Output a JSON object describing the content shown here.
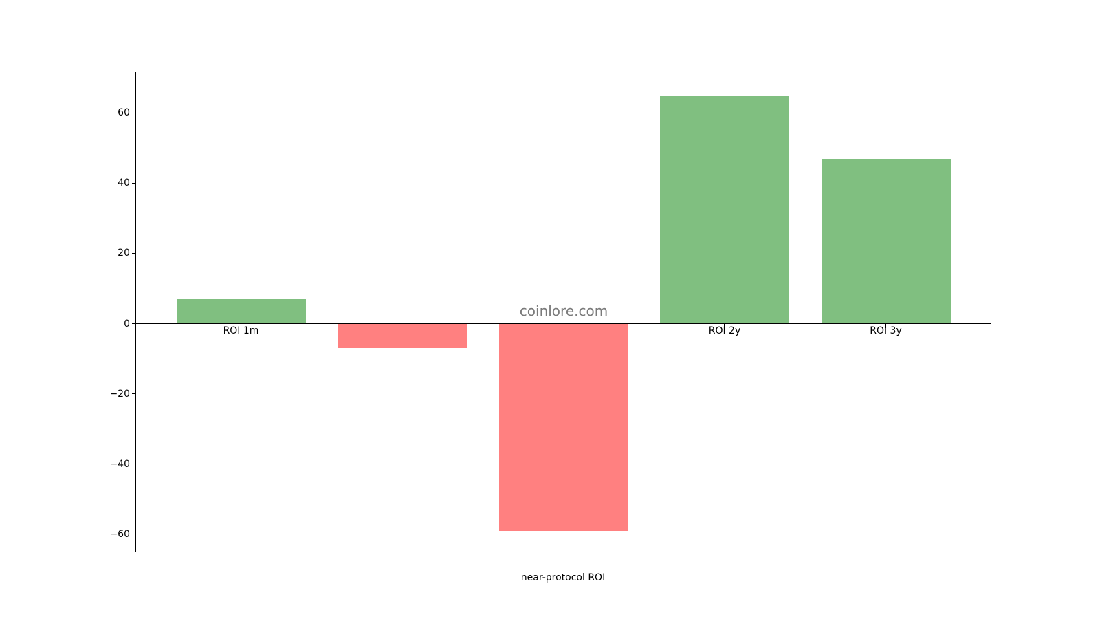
{
  "watermark": {
    "text": "coinlore.com",
    "color": "#7a7a7a"
  },
  "chart_data": {
    "type": "bar",
    "title": "",
    "xlabel": "near-protocol ROI",
    "ylabel": "",
    "categories": [
      "ROI 1m",
      "",
      "",
      "ROI 2y",
      "ROI 3y"
    ],
    "values": [
      7,
      -7,
      -59,
      65,
      47
    ],
    "y_ticks": [
      60,
      40,
      20,
      0,
      -20,
      -40,
      -60
    ],
    "y_tick_labels": [
      "60",
      "40",
      "20",
      "0",
      "−20",
      "−40",
      "−60"
    ],
    "ylim": [
      -65,
      71
    ],
    "positive_color": "#80bf80",
    "negative_color": "#ff8080",
    "bar_colors": [
      "#80bf80",
      "#ff8080",
      "#ff8080",
      "#80bf80",
      "#80bf80"
    ],
    "axis_color": "#000000",
    "grid": false,
    "legend": false,
    "note_hidden_labels": "x tick labels of the two negative bars are covered by the bars"
  }
}
